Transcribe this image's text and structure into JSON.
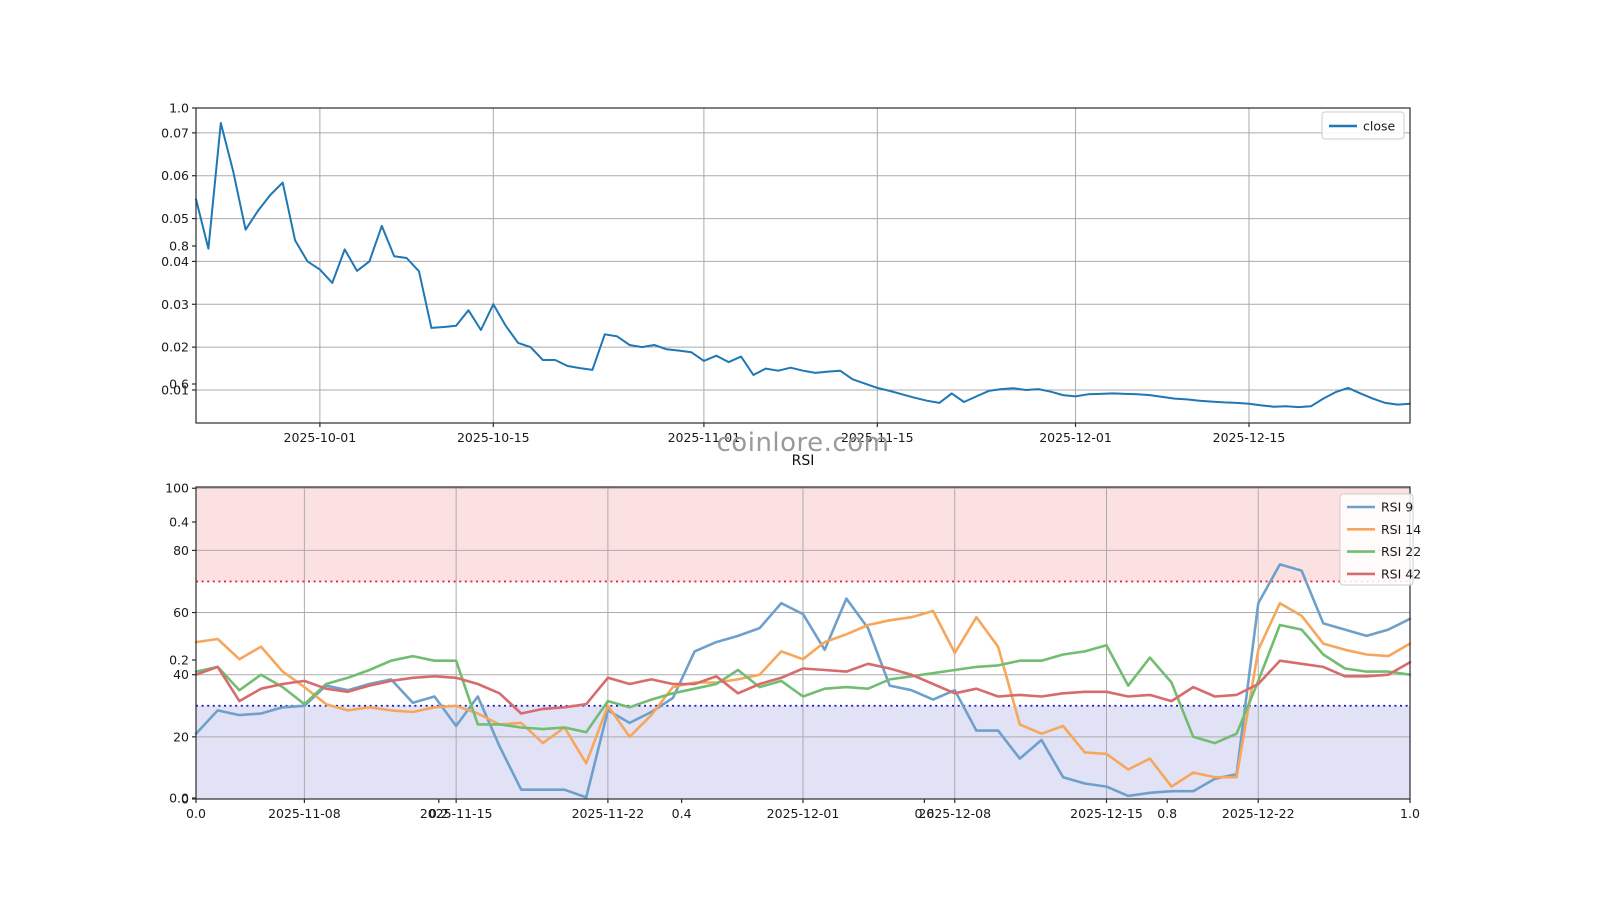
{
  "watermark": "coinlore.com",
  "colors": {
    "grid": "#ababab",
    "spine": "#2b2b2b",
    "tick_text": "#1a1a1a",
    "watermark": "#9a9a9a",
    "legend_border": "#cccccc",
    "legend_bg": "rgba(255,255,255,0.85)",
    "overbought_band": "#fce1e3",
    "oversold_band": "#e2e2f7",
    "overbought_line": "#e81c2e",
    "oversold_line": "#1515b5"
  },
  "ghost_axis": {
    "x_labels": [
      "0.0",
      "0.2",
      "0.4",
      "0.6",
      "0.8",
      "1.0"
    ],
    "y_labels": [
      "1.0",
      "0.8",
      "0.6",
      "0.4",
      "0.2",
      "0.0"
    ]
  },
  "chart_data": [
    {
      "type": "line",
      "name": "price",
      "title": "",
      "x_start": "2025-09-21",
      "x_end": "2025-12-28",
      "frequency": "daily",
      "ylim": [
        0.0023,
        0.0758
      ],
      "grid": true,
      "yticks": [
        "0.07",
        "0.06",
        "0.05",
        "0.04",
        "0.03",
        "0.02",
        "0.01"
      ],
      "ytick_values": [
        0.07,
        0.06,
        0.05,
        0.04,
        0.03,
        0.02,
        0.01
      ],
      "xticks": [
        {
          "label": "2025-10-01",
          "index": 10
        },
        {
          "label": "2025-10-15",
          "index": 24
        },
        {
          "label": "2025-11-01",
          "index": 41
        },
        {
          "label": "2025-11-15",
          "index": 55
        },
        {
          "label": "2025-12-01",
          "index": 71
        },
        {
          "label": "2025-12-15",
          "index": 85
        }
      ],
      "legend": {
        "position": "upper-right",
        "entries": [
          {
            "label": "close",
            "color": "#1f77b4"
          }
        ]
      },
      "series": [
        {
          "name": "close",
          "color": "#1f77b4",
          "width": 2,
          "values": [
            0.0545,
            0.043,
            0.0723,
            0.061,
            0.0474,
            0.0518,
            0.0555,
            0.0584,
            0.0449,
            0.04,
            0.0381,
            0.035,
            0.0428,
            0.0378,
            0.04,
            0.0483,
            0.0412,
            0.0408,
            0.0377,
            0.0245,
            0.0247,
            0.025,
            0.0286,
            0.024,
            0.03,
            0.025,
            0.021,
            0.02,
            0.017,
            0.017,
            0.0156,
            0.0151,
            0.0147,
            0.023,
            0.0225,
            0.0205,
            0.02,
            0.0205,
            0.0195,
            0.0192,
            0.0188,
            0.0168,
            0.018,
            0.0165,
            0.0178,
            0.0135,
            0.015,
            0.0145,
            0.0152,
            0.0145,
            0.014,
            0.0143,
            0.0145,
            0.0125,
            0.0115,
            0.0105,
            0.0098,
            0.009,
            0.0082,
            0.0075,
            0.007,
            0.0092,
            0.0072,
            0.0085,
            0.0098,
            0.0102,
            0.0104,
            0.01,
            0.0102,
            0.0096,
            0.0088,
            0.0085,
            0.009,
            0.0091,
            0.0092,
            0.0091,
            0.009,
            0.0088,
            0.0084,
            0.008,
            0.0078,
            0.0075,
            0.0073,
            0.0071,
            0.007,
            0.0068,
            0.0064,
            0.0061,
            0.0062,
            0.006,
            0.0062,
            0.008,
            0.0095,
            0.0105,
            0.0092,
            0.008,
            0.007,
            0.0066,
            0.0068
          ]
        }
      ]
    },
    {
      "type": "line",
      "name": "rsi",
      "title": "RSI",
      "x_start": "2025-11-03",
      "x_end": "2025-12-29",
      "frequency": "daily",
      "ylim": [
        0,
        100.4
      ],
      "grid": true,
      "yticks": [
        "100",
        "80",
        "60",
        "40",
        "20",
        "0"
      ],
      "ytick_values": [
        100,
        80,
        60,
        40,
        20,
        0
      ],
      "xticks": [
        {
          "label": "2025-11-08",
          "index": 5
        },
        {
          "label": "2025-11-15",
          "index": 12
        },
        {
          "label": "2025-11-22",
          "index": 19
        },
        {
          "label": "2025-12-01",
          "index": 28
        },
        {
          "label": "2025-12-08",
          "index": 35
        },
        {
          "label": "2025-12-15",
          "index": 42
        },
        {
          "label": "2025-12-22",
          "index": 49
        }
      ],
      "bands": [
        {
          "from": 70,
          "to": 100.4,
          "name": "overbought-zone"
        },
        {
          "from": 0,
          "to": 30,
          "name": "oversold-zone"
        }
      ],
      "hlines": [
        {
          "y": 70,
          "name": "overbought-threshold"
        },
        {
          "y": 30,
          "name": "oversold-threshold"
        }
      ],
      "legend": {
        "position": "upper-right",
        "entries": [
          {
            "label": "RSI 9",
            "color": "#6ea0cc"
          },
          {
            "label": "RSI 14",
            "color": "#f7a75c"
          },
          {
            "label": "RSI 22",
            "color": "#72bd72"
          },
          {
            "label": "RSI 42",
            "color": "#d66c6e"
          }
        ]
      },
      "series": [
        {
          "name": "RSI 9",
          "color": "#6ea0cc",
          "width": 2.6,
          "values": [
            21,
            28.5,
            27,
            27.5,
            29.5,
            30,
            36.5,
            35,
            37,
            38.5,
            31,
            33,
            23.5,
            33,
            17,
            3,
            3,
            3,
            0.5,
            28.5,
            24.5,
            28,
            32.5,
            47.5,
            50.5,
            52.5,
            55,
            63,
            59.5,
            48,
            64.5,
            55,
            36.5,
            35,
            32,
            35,
            22,
            22,
            13,
            19,
            7,
            5,
            4,
            1,
            2,
            2.5,
            2.5,
            6.5,
            8,
            63,
            75.5,
            73.5,
            56.5,
            54.5,
            52.5,
            54.5,
            58
          ]
        },
        {
          "name": "RSI 14",
          "color": "#f7a75c",
          "width": 2.6,
          "values": [
            50.5,
            51.5,
            45,
            49,
            41,
            36,
            30.5,
            28.5,
            29.5,
            28.5,
            28,
            29.5,
            30,
            27.5,
            24,
            24.5,
            18,
            23,
            11.5,
            30,
            20,
            27,
            36,
            37.5,
            37.5,
            38.5,
            40,
            47.5,
            45,
            50.5,
            53,
            56,
            57.5,
            58.5,
            60.5,
            47,
            58.5,
            49,
            24,
            21,
            23.5,
            15,
            14.5,
            9.5,
            13,
            4,
            8.5,
            7,
            7,
            48,
            63,
            59,
            50,
            48,
            46.5,
            46,
            50
          ]
        },
        {
          "name": "RSI 22",
          "color": "#72bd72",
          "width": 2.6,
          "values": [
            41,
            42.5,
            35,
            40,
            36,
            30.5,
            37,
            39,
            41.5,
            44.5,
            46,
            44.5,
            44.5,
            24,
            24,
            23,
            22.5,
            23,
            21.5,
            31.5,
            29.5,
            32,
            34,
            35.5,
            37,
            41.5,
            36,
            38,
            33,
            35.5,
            36,
            35.5,
            38.5,
            39.5,
            40.5,
            41.5,
            42.5,
            43,
            44.5,
            44.5,
            46.5,
            47.5,
            49.5,
            36.5,
            45.5,
            37.5,
            20,
            18,
            21,
            38,
            56,
            54.5,
            46.5,
            42,
            41,
            41,
            40
          ]
        },
        {
          "name": "RSI 42",
          "color": "#d66c6e",
          "width": 2.6,
          "values": [
            40,
            42.5,
            31.5,
            35.5,
            37,
            38,
            35.5,
            34.5,
            36.5,
            38,
            39,
            39.5,
            39,
            37,
            34,
            27.5,
            29,
            29.5,
            30.5,
            39,
            37,
            38.5,
            37,
            37,
            39.5,
            34,
            37,
            39,
            42,
            41.5,
            41,
            43.5,
            42,
            40,
            37,
            34,
            35.5,
            33,
            33.5,
            33,
            34,
            34.5,
            34.5,
            33,
            33.5,
            31.5,
            36,
            33,
            33.5,
            37,
            44.5,
            43.5,
            42.5,
            39.5,
            39.5,
            40,
            44
          ]
        }
      ]
    }
  ]
}
